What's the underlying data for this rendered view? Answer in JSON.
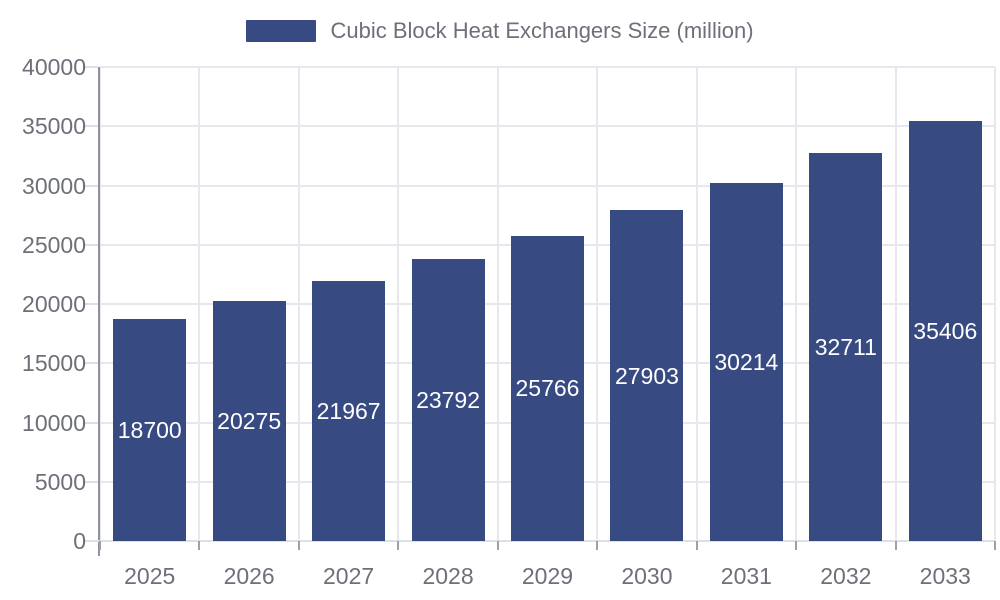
{
  "chart_data": {
    "type": "bar",
    "title": "Cubic Block Heat Exchangers Size (million)",
    "categories": [
      "2025",
      "2026",
      "2027",
      "2028",
      "2029",
      "2030",
      "2031",
      "2032",
      "2033"
    ],
    "values": [
      18700,
      20275,
      21967,
      23792,
      25766,
      27903,
      30214,
      32711,
      35406
    ],
    "series_name": "Cubic Block Heat Exchangers Size (million)",
    "xlabel": "",
    "ylabel": "",
    "ylim": [
      0,
      40000
    ],
    "ytick_step": 5000,
    "yticks": [
      "0",
      "5000",
      "10000",
      "15000",
      "20000",
      "25000",
      "30000",
      "35000",
      "40000"
    ],
    "grid": true,
    "legend_position": "top",
    "value_label_position": "inside-center"
  },
  "colors": {
    "bar": "#374A82",
    "bar_value_text": "#ffffff",
    "axis_text": "#6E7079",
    "legend_text": "#6E7079",
    "gridline": "#E6E8EE",
    "y_axis_line": "#8E929C",
    "x_axis_line": "#DCDFE5",
    "x_tick": "#9BA0AA",
    "background": "#ffffff"
  }
}
